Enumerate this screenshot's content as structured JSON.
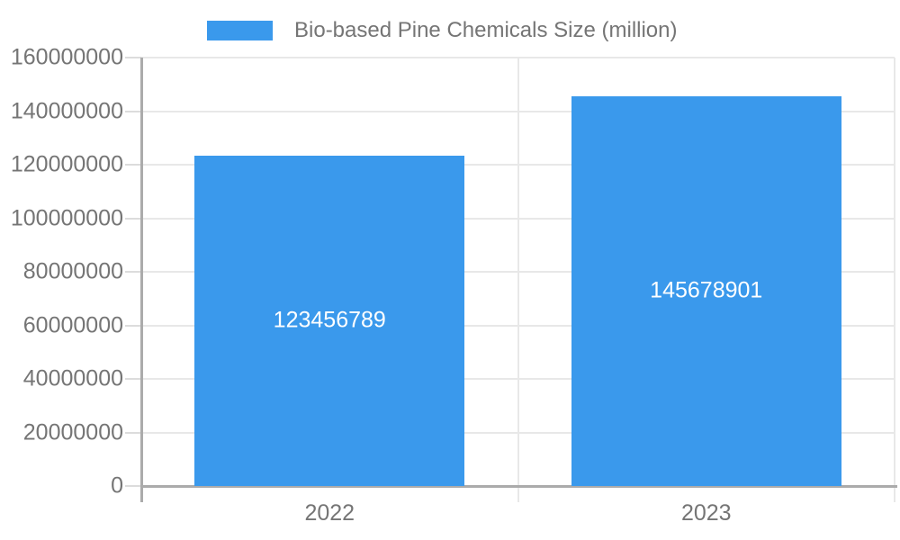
{
  "legend": {
    "label": "Bio-based Pine Chemicals Size (million)"
  },
  "chart_data": {
    "type": "bar",
    "title": "Bio-based Pine Chemicals Size (million)",
    "categories": [
      "2022",
      "2023"
    ],
    "series": [
      {
        "name": "Bio-based Pine Chemicals Size (million)",
        "values": [
          123456789,
          145678901
        ]
      }
    ],
    "data_labels": [
      "123456789",
      "145678901"
    ],
    "y_ticks": [
      "0",
      "20000000",
      "40000000",
      "60000000",
      "80000000",
      "100000000",
      "120000000",
      "140000000",
      "160000000"
    ],
    "ylim": [
      0,
      160000000
    ],
    "xlabel": "",
    "ylabel": "",
    "grid": true,
    "legend_position": "top",
    "colors": {
      "bar": "#3a99ec",
      "axis_label": "#757575",
      "grid_line": "#e8e8e8",
      "axis_line": "#ababab",
      "tick_line": "#dcdcdc",
      "value_label": "#ffffff",
      "background": "#ffffff"
    }
  }
}
